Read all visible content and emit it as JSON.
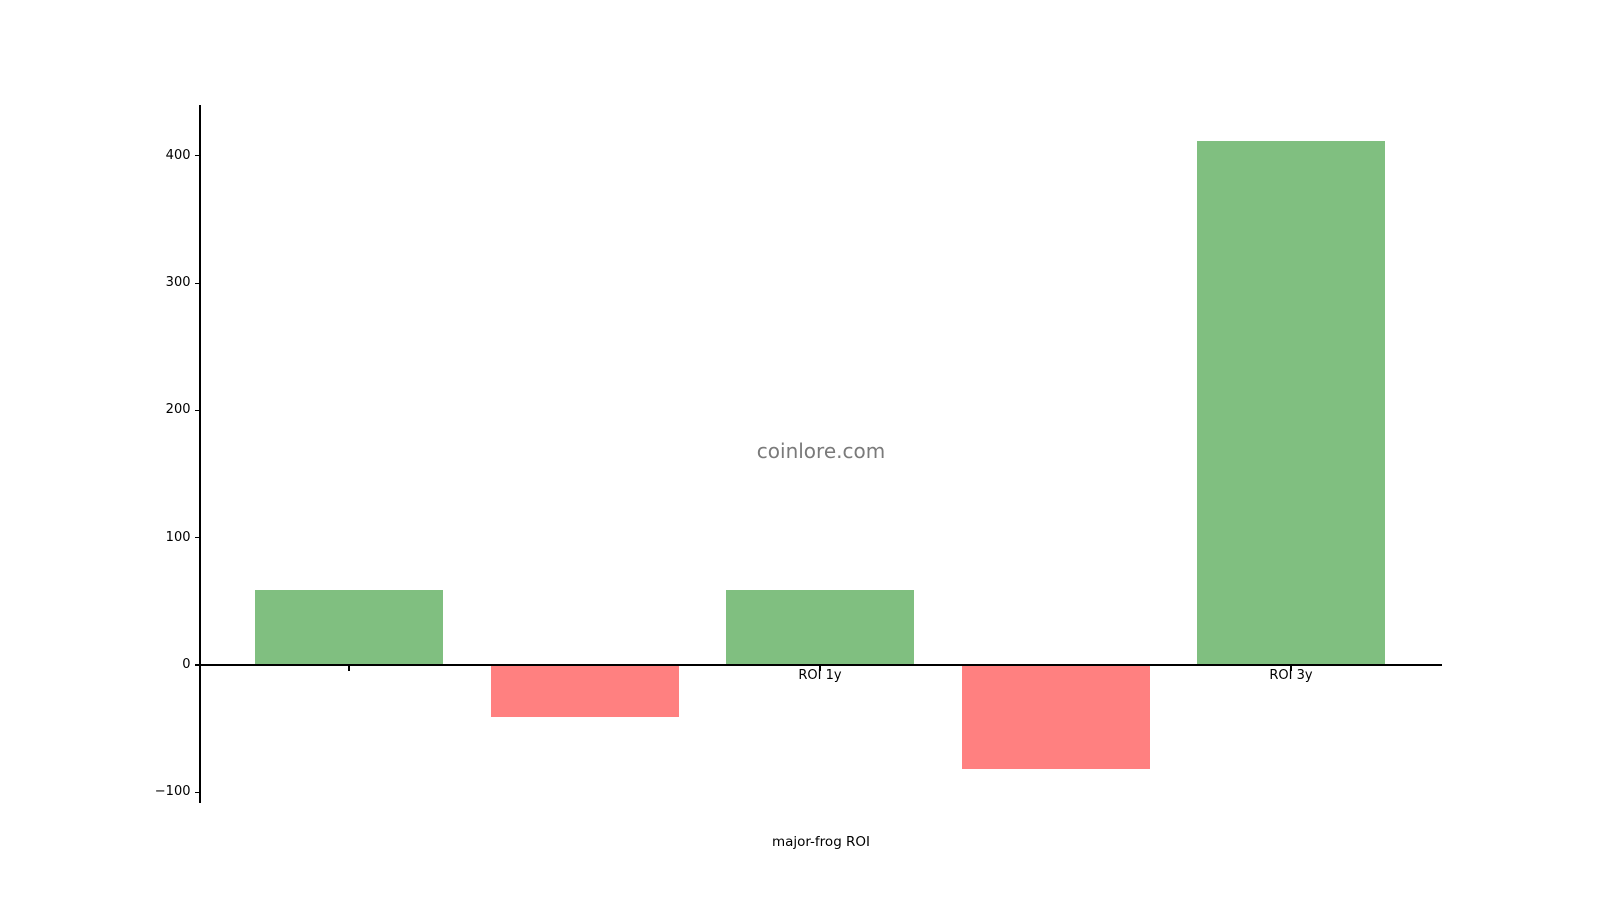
{
  "chart_data": {
    "type": "bar",
    "title": "",
    "xlabel": "major-frog ROI",
    "ylabel": "",
    "watermark": "coinlore.com",
    "categories": [
      "",
      "",
      "ROI 1y",
      "",
      "ROI 3y"
    ],
    "values": [
      59,
      -41,
      59,
      -82,
      412
    ],
    "bar_signs": [
      "positive",
      "negative",
      "positive",
      "negative",
      "positive"
    ],
    "yticks": [
      {
        "value": 400,
        "label": "400"
      },
      {
        "value": 300,
        "label": "300"
      },
      {
        "value": 200,
        "label": "200"
      },
      {
        "value": 100,
        "label": "100"
      },
      {
        "value": 0,
        "label": "0"
      },
      {
        "value": -100,
        "label": "−100"
      }
    ],
    "ylim": [
      -110,
      440
    ],
    "grid": false,
    "legend": "none",
    "colors": {
      "positive": "#80bf80",
      "negative": "#ff8080",
      "axis": "#000000",
      "tick_text": "#000000",
      "watermark": "#7a7a7a"
    }
  }
}
